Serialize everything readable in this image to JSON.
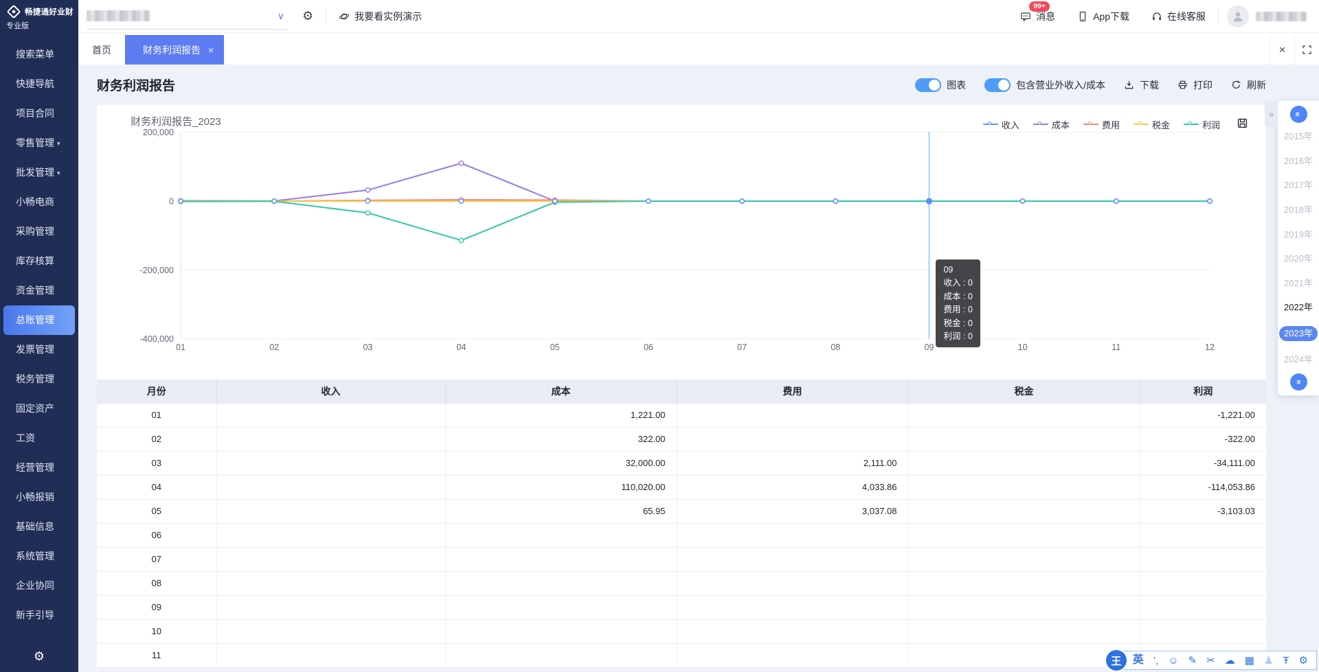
{
  "topbar": {
    "brand": "畅捷通好业财",
    "edition": "专业版",
    "demo_label": "我要看实例演示",
    "right_items": [
      {
        "name": "messages",
        "icon": "message-icon",
        "label": "消息",
        "badge": "99+"
      },
      {
        "name": "app-download",
        "icon": "phone-icon",
        "label": "App下载"
      },
      {
        "name": "online-service",
        "icon": "headset-icon",
        "label": "在线客服"
      }
    ]
  },
  "sidebar": {
    "items": [
      {
        "label": "搜索菜单"
      },
      {
        "label": "快捷导航"
      },
      {
        "label": "项目合同"
      },
      {
        "label": "零售管理",
        "expandable": true
      },
      {
        "label": "批发管理",
        "expandable": true
      },
      {
        "label": "小畅电商"
      },
      {
        "label": "采购管理"
      },
      {
        "label": "库存核算"
      },
      {
        "label": "资金管理"
      },
      {
        "label": "总账管理",
        "active": true
      },
      {
        "label": "发票管理"
      },
      {
        "label": "税务管理"
      },
      {
        "label": "固定资产"
      },
      {
        "label": "工资"
      },
      {
        "label": "经营管理"
      },
      {
        "label": "小畅报销"
      },
      {
        "label": "基础信息"
      },
      {
        "label": "系统管理"
      },
      {
        "label": "企业协同"
      },
      {
        "label": "新手引导"
      }
    ]
  },
  "tabs": [
    {
      "label": "首页",
      "active": false
    },
    {
      "label": "财务利润报告",
      "active": true,
      "closable": true
    }
  ],
  "page": {
    "title": "财务利润报告",
    "toggles": [
      {
        "name": "chart",
        "label": "图表",
        "on": true
      },
      {
        "name": "include-nonoperating",
        "label": "包含营业外收入/成本",
        "on": true
      }
    ],
    "actions": [
      {
        "label": "下载",
        "icon": "download-icon"
      },
      {
        "label": "打印",
        "icon": "print-icon"
      },
      {
        "label": "刷新",
        "icon": "refresh-icon"
      }
    ]
  },
  "chart_data": {
    "type": "line",
    "title": "财务利润报告_2023",
    "categories": [
      "01",
      "02",
      "03",
      "04",
      "05",
      "06",
      "07",
      "08",
      "09",
      "10",
      "11",
      "12"
    ],
    "series": [
      {
        "name": "收入",
        "color": "#5b8ff9",
        "values": [
          0,
          0,
          0,
          0,
          0,
          0,
          0,
          0,
          0,
          0,
          0,
          0
        ]
      },
      {
        "name": "成本",
        "color": "#9579e8",
        "values": [
          1221,
          322,
          32000,
          110020,
          65.95,
          0,
          0,
          0,
          0,
          0,
          0,
          0
        ]
      },
      {
        "name": "费用",
        "color": "#f3867c",
        "values": [
          0,
          0,
          2111,
          4033.86,
          3037.08,
          0,
          0,
          0,
          0,
          0,
          0,
          0
        ]
      },
      {
        "name": "税金",
        "color": "#f2c94c",
        "values": [
          0,
          0,
          0,
          0,
          0,
          0,
          0,
          0,
          0,
          0,
          0,
          0
        ]
      },
      {
        "name": "利润",
        "color": "#2fc7a4",
        "values": [
          -1221,
          -322,
          -34111,
          -114053.86,
          -3103.03,
          0,
          0,
          0,
          0,
          0,
          0,
          0
        ]
      }
    ],
    "ylim": [
      -400000,
      200000
    ],
    "yticks": {
      "values": [
        200000,
        0,
        -200000,
        -400000
      ],
      "labels": [
        "200,000",
        "0",
        "-200,000",
        "-400,000"
      ]
    },
    "grid": true,
    "legend_position": "top-right",
    "hover": {
      "index": 8,
      "label": "09",
      "lines": [
        {
          "name": "收入",
          "value": "0"
        },
        {
          "name": "成本",
          "value": "0"
        },
        {
          "name": "费用",
          "value": "0"
        },
        {
          "name": "税金",
          "value": "0"
        },
        {
          "name": "利润",
          "value": "0"
        }
      ]
    }
  },
  "table": {
    "columns": [
      "月份",
      "收入",
      "成本",
      "费用",
      "税金",
      "利润"
    ],
    "rows": [
      [
        "01",
        "",
        "1,221.00",
        "",
        "",
        "-1,221.00"
      ],
      [
        "02",
        "",
        "322.00",
        "",
        "",
        "-322.00"
      ],
      [
        "03",
        "",
        "32,000.00",
        "2,111.00",
        "",
        "-34,111.00"
      ],
      [
        "04",
        "",
        "110,020.00",
        "4,033.86",
        "",
        "-114,053.86"
      ],
      [
        "05",
        "",
        "65.95",
        "3,037.08",
        "",
        "-3,103.03"
      ],
      [
        "06",
        "",
        "",
        "",
        "",
        ""
      ],
      [
        "07",
        "",
        "",
        "",
        "",
        ""
      ],
      [
        "08",
        "",
        "",
        "",
        "",
        ""
      ],
      [
        "09",
        "",
        "",
        "",
        "",
        ""
      ],
      [
        "10",
        "",
        "",
        "",
        "",
        ""
      ],
      [
        "11",
        "",
        "",
        "",
        "",
        ""
      ]
    ]
  },
  "year_panel": {
    "collapse_handle": "»",
    "years": [
      {
        "label": "2015年",
        "state": "dim"
      },
      {
        "label": "2016年",
        "state": "dim"
      },
      {
        "label": "2017年",
        "state": "dim"
      },
      {
        "label": "2018年",
        "state": "dim"
      },
      {
        "label": "2019年",
        "state": "dim"
      },
      {
        "label": "2020年",
        "state": "dim"
      },
      {
        "label": "2021年",
        "state": "dim"
      },
      {
        "label": "2022年",
        "state": "normal"
      },
      {
        "label": "2023年",
        "state": "selected"
      },
      {
        "label": "2024年",
        "state": "dim"
      }
    ]
  },
  "tabbar_actions": {
    "close": "×",
    "active_tab_close": "×"
  },
  "ime": {
    "logo": "王",
    "items": [
      {
        "glyph": "英",
        "name": "english-mode"
      },
      {
        "glyph": "’,",
        "name": "punctuation"
      },
      {
        "glyph": "☺",
        "name": "emoji"
      },
      {
        "glyph": "✎",
        "name": "handwriting"
      },
      {
        "glyph": "✂",
        "name": "screenshot"
      },
      {
        "glyph": "☁",
        "name": "cloud-input"
      },
      {
        "glyph": "▦",
        "name": "virtual-keyboard"
      },
      {
        "glyph": "♟",
        "name": "profile",
        "dim": true
      },
      {
        "glyph": "Ŧ",
        "name": "skin"
      },
      {
        "glyph": "⚙",
        "name": "settings"
      }
    ]
  },
  "colors": {
    "navy": "#202e55",
    "active_tab": "#5e7cf2",
    "toggle_on": "#4d9df4",
    "badge": "#f5465a",
    "year_selected": "#5d87f0",
    "hover_line": "#74d4f2",
    "hover_dot": "#5b8ff9"
  }
}
